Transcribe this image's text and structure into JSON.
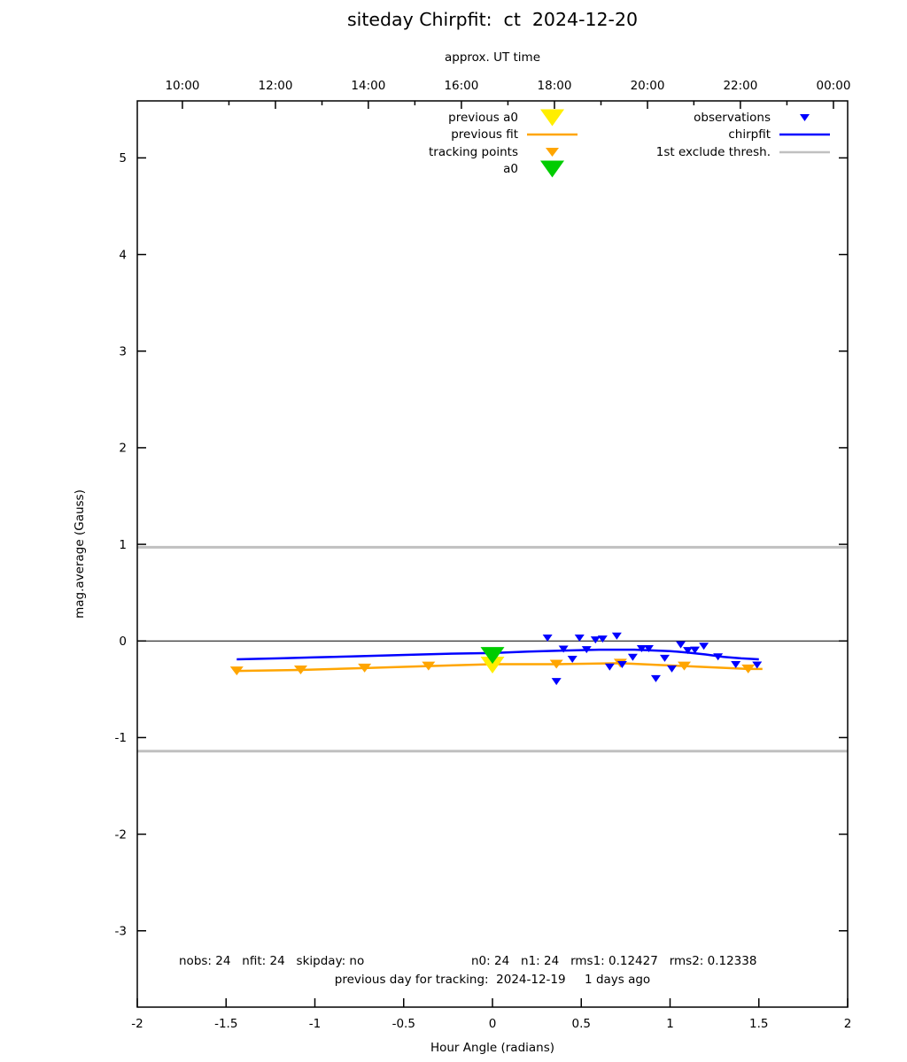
{
  "title": "siteday Chirpfit:  ct  2024-12-20",
  "axes": {
    "top_label": "approx. UT time",
    "x_label": "Hour Angle (radians)",
    "y_label": "mag.average (Gauss)"
  },
  "legend": {
    "left": [
      {
        "label": "previous a0",
        "marker": "triangle",
        "size": "large",
        "color": "#ffee00"
      },
      {
        "label": "previous fit",
        "marker": "line",
        "color": "#ffa500"
      },
      {
        "label": "tracking points",
        "marker": "triangle",
        "size": "medium",
        "color": "#ffa500"
      },
      {
        "label": "a0",
        "marker": "triangle",
        "size": "large",
        "color": "#00cc00"
      }
    ],
    "right": [
      {
        "label": "observations",
        "marker": "triangle",
        "size": "small",
        "color": "#0000ff"
      },
      {
        "label": "chirpfit",
        "marker": "line",
        "color": "#0000ff"
      },
      {
        "label": "1st exclude thresh.",
        "marker": "line",
        "color": "#c0c0c0"
      }
    ]
  },
  "stats": {
    "line1_left": "nobs: 24   nfit: 24   skipday: no",
    "line1_right": "n0: 24   n1: 24   rms1: 0.12427   rms2: 0.12338",
    "line2": "previous day for tracking:  2024-12-19     1 days ago"
  },
  "chart_data": {
    "type": "scatter",
    "title": "siteday Chirpfit:  ct  2024-12-20",
    "xlabel": "Hour Angle (radians)",
    "ylabel": "mag.average (Gauss)",
    "x2label": "approx. UT time",
    "xlim": [
      -2,
      2
    ],
    "ylim": [
      -3.79,
      5.59
    ],
    "grid": false,
    "zero_line": 0,
    "threshold_lines": [
      0.97,
      -1.14
    ],
    "colors": {
      "threshold": "#c0c0c0",
      "zero_axis": "#000000"
    },
    "x_ticks": [
      {
        "v": -2,
        "label": "-2"
      },
      {
        "v": -1.5,
        "label": "-1.5"
      },
      {
        "v": -1,
        "label": "-1"
      },
      {
        "v": -0.5,
        "label": "-0.5"
      },
      {
        "v": 0,
        "label": "0"
      },
      {
        "v": 0.5,
        "label": "0.5"
      },
      {
        "v": 1,
        "label": "1"
      },
      {
        "v": 1.5,
        "label": "1.5"
      },
      {
        "v": 2,
        "label": "2"
      }
    ],
    "y_ticks": [
      {
        "v": -3,
        "label": "-3"
      },
      {
        "v": -2,
        "label": "-2"
      },
      {
        "v": -1,
        "label": "-1"
      },
      {
        "v": 0,
        "label": "0"
      },
      {
        "v": 1,
        "label": "1"
      },
      {
        "v": 2,
        "label": "2"
      },
      {
        "v": 3,
        "label": "3"
      },
      {
        "v": 4,
        "label": "4"
      },
      {
        "v": 5,
        "label": "5"
      }
    ],
    "x2_ticks": [
      {
        "v": -1.746,
        "label": "10:00"
      },
      {
        "v": -1.484,
        "label": ""
      },
      {
        "v": -1.222,
        "label": "12:00"
      },
      {
        "v": -0.96,
        "label": ""
      },
      {
        "v": -0.699,
        "label": "14:00"
      },
      {
        "v": -0.437,
        "label": ""
      },
      {
        "v": -0.175,
        "label": "16:00"
      },
      {
        "v": 0.087,
        "label": ""
      },
      {
        "v": 0.349,
        "label": "18:00"
      },
      {
        "v": 0.611,
        "label": ""
      },
      {
        "v": 0.873,
        "label": "20:00"
      },
      {
        "v": 1.134,
        "label": ""
      },
      {
        "v": 1.396,
        "label": "22:00"
      },
      {
        "v": 1.658,
        "label": ""
      },
      {
        "v": 1.92,
        "label": "00:00"
      }
    ],
    "series": [
      {
        "name": "previous fit",
        "kind": "line",
        "color": "#ffa500",
        "width": 2.5,
        "points": [
          [
            -1.44,
            -0.31
          ],
          [
            -1.08,
            -0.3
          ],
          [
            -0.72,
            -0.28
          ],
          [
            -0.36,
            -0.26
          ],
          [
            0,
            -0.24
          ],
          [
            0.36,
            -0.24
          ],
          [
            0.72,
            -0.23
          ],
          [
            1.08,
            -0.26
          ],
          [
            1.44,
            -0.29
          ],
          [
            1.52,
            -0.29
          ]
        ]
      },
      {
        "name": "tracking points",
        "kind": "points",
        "marker": "triangle-down",
        "marker_size": "medium",
        "color": "#ffa500",
        "points": [
          [
            -1.44,
            -0.31
          ],
          [
            -1.08,
            -0.3
          ],
          [
            -0.72,
            -0.28
          ],
          [
            -0.36,
            -0.26
          ],
          [
            0,
            -0.24
          ],
          [
            0.36,
            -0.24
          ],
          [
            0.72,
            -0.23
          ],
          [
            1.08,
            -0.26
          ],
          [
            1.44,
            -0.29
          ]
        ]
      },
      {
        "name": "previous a0",
        "kind": "points",
        "marker": "triangle-down",
        "marker_size": "large",
        "color": "#ffee00",
        "points": [
          [
            0,
            -0.25
          ]
        ]
      },
      {
        "name": "chirpfit",
        "kind": "line",
        "color": "#0000ff",
        "width": 2.5,
        "points": [
          [
            -1.44,
            -0.19
          ],
          [
            -1.2,
            -0.18
          ],
          [
            -1.0,
            -0.17
          ],
          [
            -0.8,
            -0.16
          ],
          [
            -0.6,
            -0.15
          ],
          [
            -0.4,
            -0.14
          ],
          [
            -0.2,
            -0.13
          ],
          [
            0,
            -0.125
          ],
          [
            0.2,
            -0.11
          ],
          [
            0.4,
            -0.1
          ],
          [
            0.6,
            -0.09
          ],
          [
            0.8,
            -0.09
          ],
          [
            1.0,
            -0.105
          ],
          [
            1.1,
            -0.12
          ],
          [
            1.2,
            -0.14
          ],
          [
            1.3,
            -0.165
          ],
          [
            1.4,
            -0.18
          ],
          [
            1.5,
            -0.19
          ]
        ]
      },
      {
        "name": "a0",
        "kind": "points",
        "marker": "triangle-down",
        "marker_size": "large",
        "color": "#00cc00",
        "points": [
          [
            0,
            -0.15
          ]
        ]
      },
      {
        "name": "observations",
        "kind": "points",
        "marker": "triangle-down",
        "marker_size": "small",
        "color": "#0000ff",
        "points": [
          [
            0.31,
            0.03
          ],
          [
            0.36,
            -0.42
          ],
          [
            0.4,
            -0.085
          ],
          [
            0.45,
            -0.19
          ],
          [
            0.49,
            0.03
          ],
          [
            0.53,
            -0.09
          ],
          [
            0.58,
            0.01
          ],
          [
            0.62,
            0.02
          ],
          [
            0.66,
            -0.27
          ],
          [
            0.7,
            0.05
          ],
          [
            0.73,
            -0.245
          ],
          [
            0.79,
            -0.17
          ],
          [
            0.84,
            -0.08
          ],
          [
            0.88,
            -0.08
          ],
          [
            0.92,
            -0.39
          ],
          [
            0.97,
            -0.18
          ],
          [
            1.01,
            -0.29
          ],
          [
            1.06,
            -0.04
          ],
          [
            1.1,
            -0.1
          ],
          [
            1.14,
            -0.095
          ],
          [
            1.19,
            -0.055
          ],
          [
            1.27,
            -0.165
          ],
          [
            1.37,
            -0.245
          ],
          [
            1.49,
            -0.25
          ]
        ]
      }
    ]
  }
}
